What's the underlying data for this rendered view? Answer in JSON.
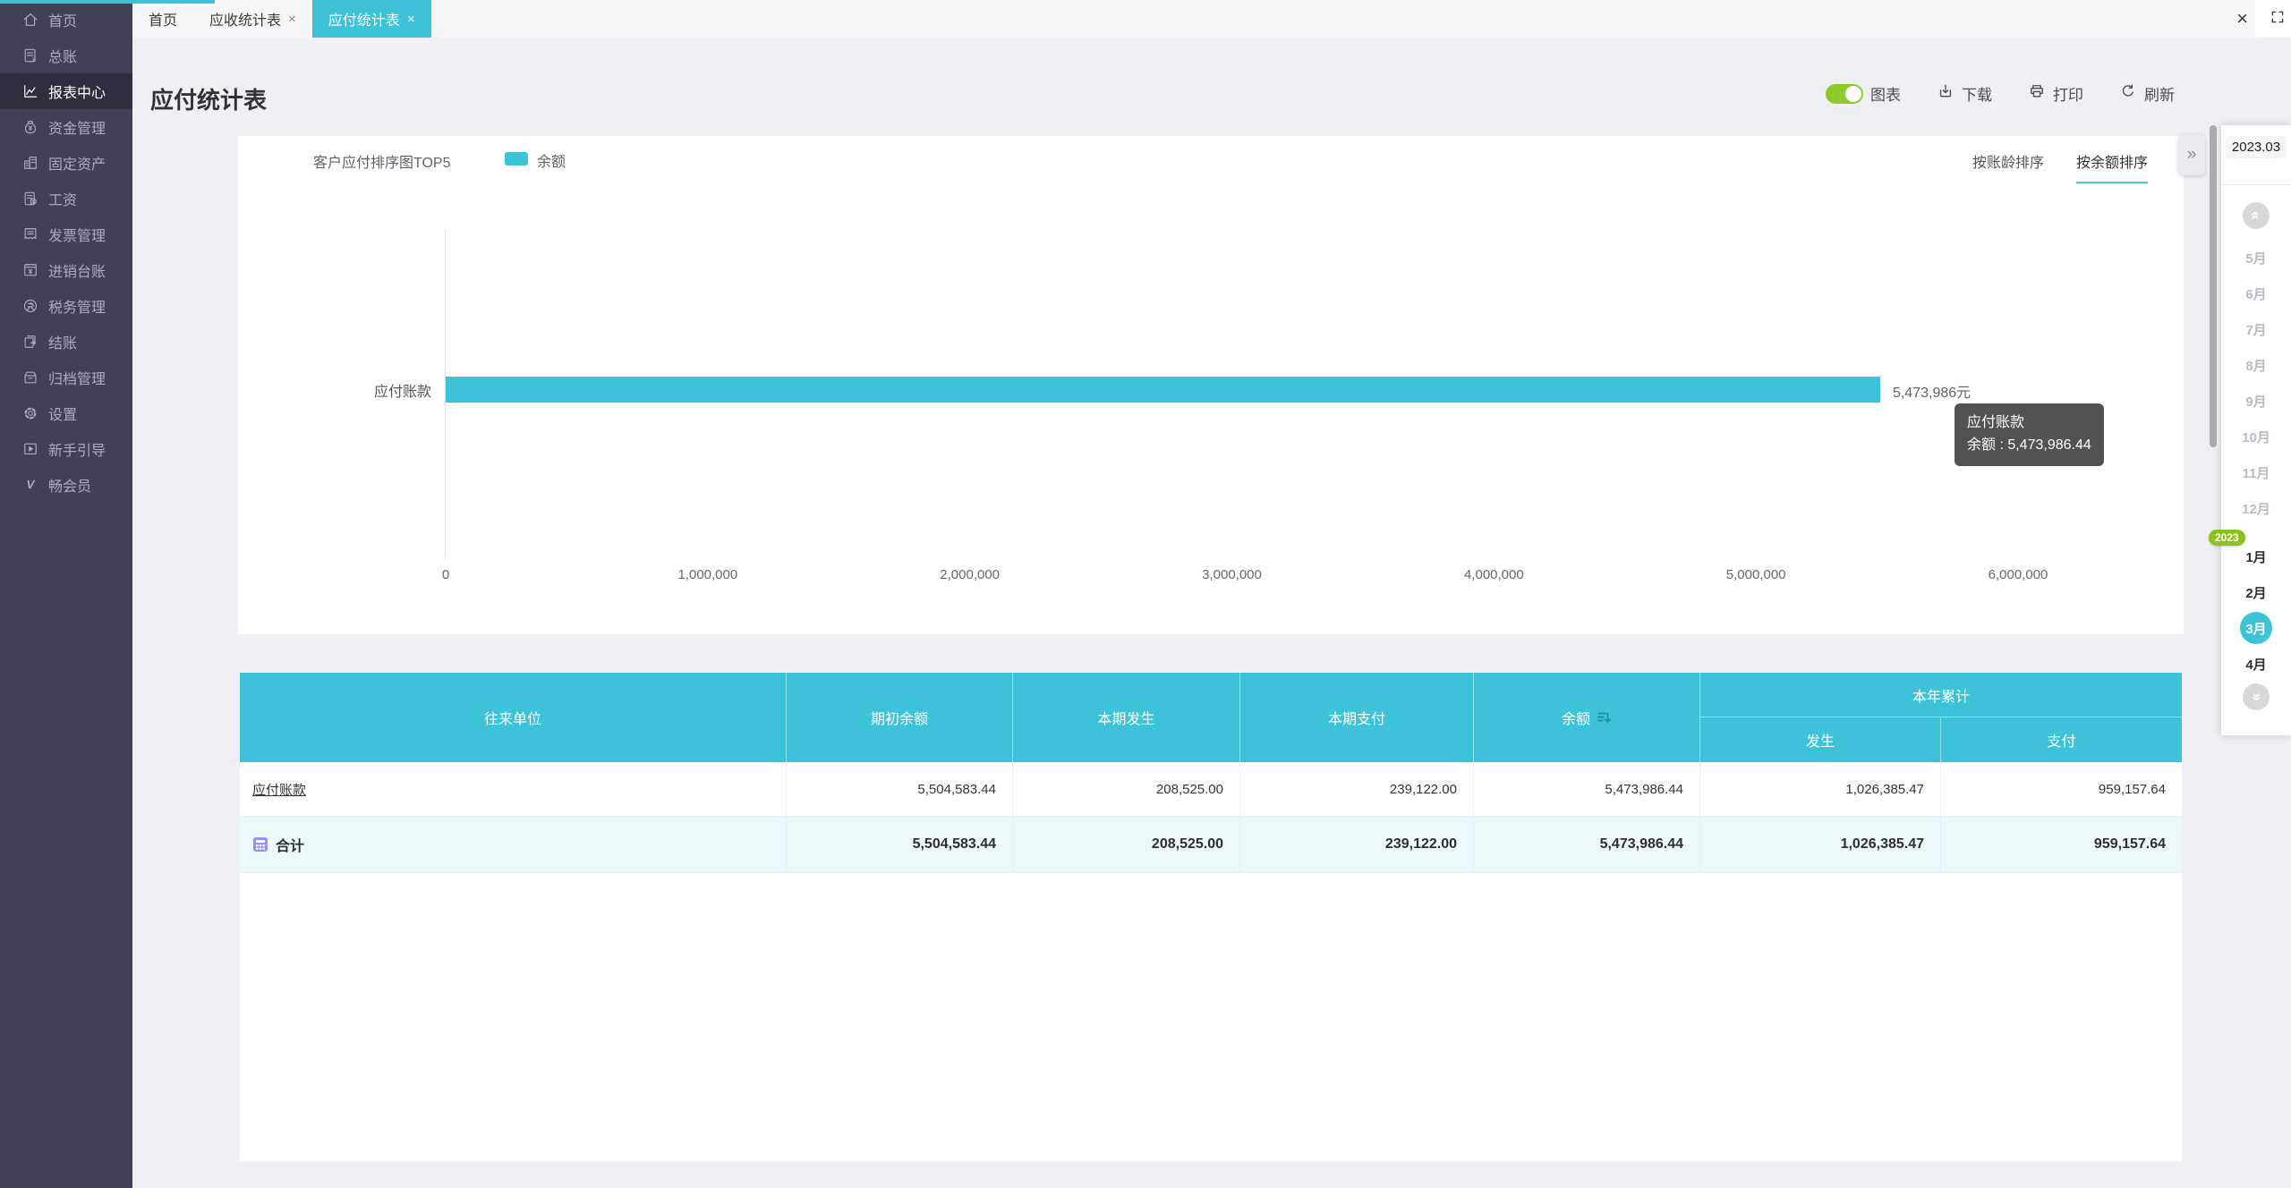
{
  "colors": {
    "accent_teal": "#3cc3d8",
    "sidebar_bg": "#3f4257",
    "sidebar_active_bg": "#2d2f3e",
    "toggle_green": "#8dcb2c",
    "year_badge_green": "#8cc21f",
    "total_row_bg": "#edf8fb",
    "tooltip_bg": "#3a3a3c"
  },
  "icons": {
    "tab_close": "×",
    "window_close": "×",
    "collapse": "»",
    "chevron": "«"
  },
  "sidebar": {
    "items": [
      {
        "label": "首页",
        "icon": "home-icon",
        "active": false
      },
      {
        "label": "总账",
        "icon": "general-ledger-icon",
        "active": false
      },
      {
        "label": "报表中心",
        "icon": "report-center-icon",
        "active": true
      },
      {
        "label": "资金管理",
        "icon": "funds-icon",
        "active": false
      },
      {
        "label": "固定资产",
        "icon": "fixed-assets-icon",
        "active": false
      },
      {
        "label": "工资",
        "icon": "payroll-icon",
        "active": false
      },
      {
        "label": "发票管理",
        "icon": "invoice-icon",
        "active": false
      },
      {
        "label": "进销台账",
        "icon": "purchase-sales-ledger-icon",
        "active": false
      },
      {
        "label": "税务管理",
        "icon": "tax-icon",
        "active": false
      },
      {
        "label": "结账",
        "icon": "closing-icon",
        "active": false
      },
      {
        "label": "归档管理",
        "icon": "archive-icon",
        "active": false
      },
      {
        "label": "设置",
        "icon": "settings-icon",
        "active": false
      },
      {
        "label": "新手引导",
        "icon": "beginner-guide-icon",
        "active": false
      },
      {
        "label": "畅会员",
        "icon": "membership-icon",
        "active": false
      }
    ]
  },
  "tabs": {
    "items": [
      {
        "label": "首页",
        "closable": false,
        "active": false
      },
      {
        "label": "应收统计表",
        "closable": true,
        "active": false
      },
      {
        "label": "应付统计表",
        "closable": true,
        "active": true
      }
    ]
  },
  "page": {
    "title": "应付统计表"
  },
  "toolbar": {
    "chart_toggle_label": "图表",
    "chart_toggle_on": true,
    "download_label": "下载",
    "print_label": "打印",
    "refresh_label": "刷新"
  },
  "chart_controls": {
    "sort_by_age": "按账龄排序",
    "sort_by_balance": "按余额排序",
    "active_sort": "按余额排序"
  },
  "chart_data": {
    "type": "bar",
    "orientation": "horizontal",
    "title": "客户应付排序图TOP5",
    "legend_label": "余额",
    "categories": [
      "应付账款"
    ],
    "series": [
      {
        "name": "余额",
        "values": [
          5473986.44
        ]
      }
    ],
    "value_label": "5,473,986元",
    "xlim": [
      0,
      6000000
    ],
    "x_ticks": [
      0,
      1000000,
      2000000,
      3000000,
      4000000,
      5000000,
      6000000
    ],
    "x_tick_labels": [
      "0",
      "1,000,000",
      "2,000,000",
      "3,000,000",
      "4,000,000",
      "5,000,000",
      "6,000,000"
    ],
    "grid": false,
    "legend_position": "top",
    "tooltip": {
      "title": "应付账款",
      "text": "余额 : 5,473,986.44"
    }
  },
  "table": {
    "headers": {
      "unit": "往来单位",
      "opening_balance": "期初余额",
      "current_incurred": "本期发生",
      "current_paid": "本期支付",
      "balance": "余额",
      "ytd_group": "本年累计",
      "ytd_incurred": "发生",
      "ytd_paid": "支付"
    },
    "rows": [
      {
        "unit": "应付账款",
        "values": [
          "5,504,583.44",
          "208,525.00",
          "239,122.00",
          "5,473,986.44",
          "1,026,385.47",
          "959,157.64"
        ]
      }
    ],
    "total": {
      "label": "合计",
      "values": [
        "5,504,583.44",
        "208,525.00",
        "239,122.00",
        "5,473,986.44",
        "1,026,385.47",
        "959,157.64"
      ]
    }
  },
  "month_panel": {
    "current_period": "2023.03",
    "year_badge": "2023",
    "months": [
      "5月",
      "6月",
      "7月",
      "8月",
      "9月",
      "10月",
      "11月",
      "12月",
      "1月",
      "2月",
      "3月",
      "4月"
    ],
    "active_month": "3月"
  }
}
